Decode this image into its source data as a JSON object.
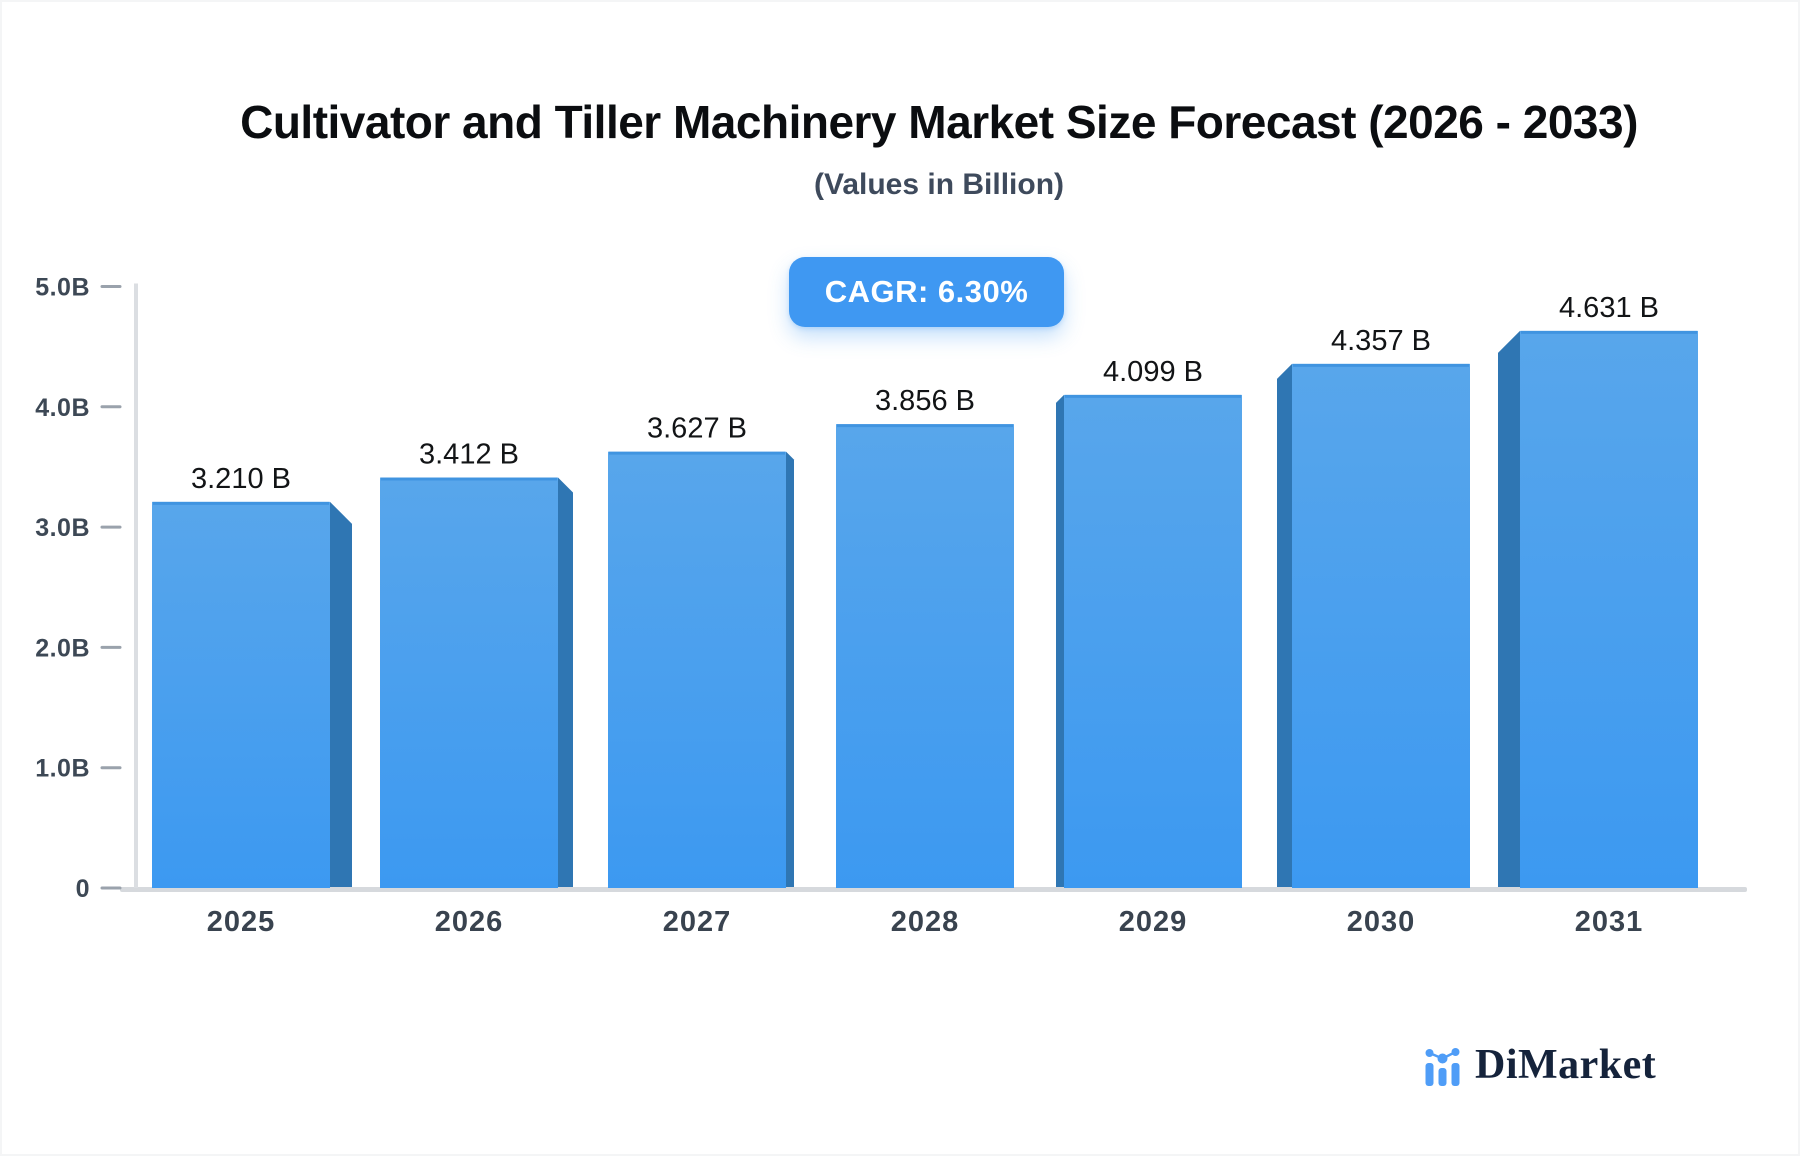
{
  "chart_data": {
    "type": "bar",
    "title": "Cultivator and Tiller Machinery Market Size Forecast (2026 - 2033)",
    "subtitle": "(Values in Billion)",
    "cagr_label": "CAGR: 6.30%",
    "categories": [
      "2025",
      "2026",
      "2027",
      "2028",
      "2029",
      "2030",
      "2031"
    ],
    "values": [
      3.21,
      3.412,
      3.627,
      3.856,
      4.099,
      4.357,
      4.631
    ],
    "value_labels": [
      "3.210 B",
      "3.412 B",
      "3.627 B",
      "3.856 B",
      "4.099 B",
      "4.357 B",
      "4.631 B"
    ],
    "y_ticks": [
      "0",
      "1.0B",
      "2.0B",
      "3.0B",
      "4.0B",
      "5.0B"
    ],
    "ylim": [
      0,
      5
    ],
    "xlabel": "",
    "ylabel": "",
    "grid": false,
    "legend": "none",
    "colors": {
      "bar_face_top": "#58A6EB",
      "bar_face_bottom": "#3C99F1",
      "bar_top_edge": "#2E86D8",
      "bar_side": "#2F76B3",
      "badge_bg": "#3F98F2",
      "badge_text": "#FFFFFF",
      "baseline": "#D6D9DD",
      "axis_line": "#DBDEE2",
      "tick": "#9AA2AC",
      "y_label": "#3D4855",
      "x_label": "#39434F",
      "value_label": "#121416"
    }
  },
  "branding": {
    "logo_text": "DiMarket",
    "logo_icon": "mini-bar-chart-icon"
  }
}
